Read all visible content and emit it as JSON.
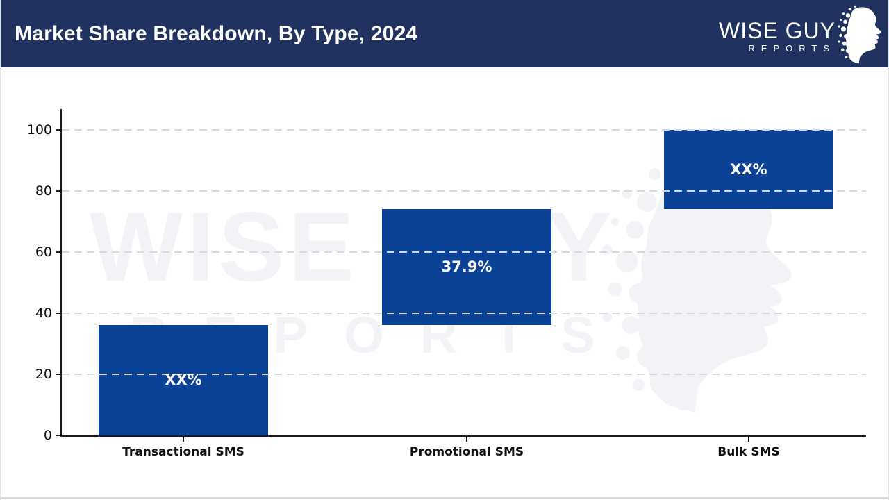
{
  "header": {
    "title": "Market Share Breakdown, By Type, 2024",
    "background_color": "#213260",
    "logo": {
      "wordmark": "WISE GUY",
      "subtext": "REPORTS"
    }
  },
  "watermark": {
    "wordmark": "WISE GUY",
    "subtext": "REPORTS"
  },
  "chart_data": {
    "type": "bar",
    "subtype": "floating-segment-waterfall",
    "title": "Market Share Breakdown, By Type, 2024",
    "categories": [
      "Transactional SMS",
      "Promotional SMS",
      "Bulk SMS"
    ],
    "series": [
      {
        "name": "Market share (%)",
        "segments": [
          {
            "category": "Transactional SMS",
            "start": 0,
            "end": 36.2,
            "label": "XX%"
          },
          {
            "category": "Promotional SMS",
            "start": 36.2,
            "end": 74.1,
            "label": "37.9%"
          },
          {
            "category": "Bulk SMS",
            "start": 74.1,
            "end": 100,
            "label": "XX%"
          }
        ]
      }
    ],
    "xlabel": "",
    "ylabel": "",
    "yticks": [
      0,
      20,
      40,
      60,
      80,
      100
    ],
    "ylim": [
      0,
      107
    ],
    "legend": "none",
    "grid": "horizontal dashed gridlines, drawn above bars",
    "bar_color": "#0b4296",
    "bar_label_color": "#ffffff",
    "axis_color": "#1a1a1a",
    "gridline_color": "#d9d9d9"
  }
}
